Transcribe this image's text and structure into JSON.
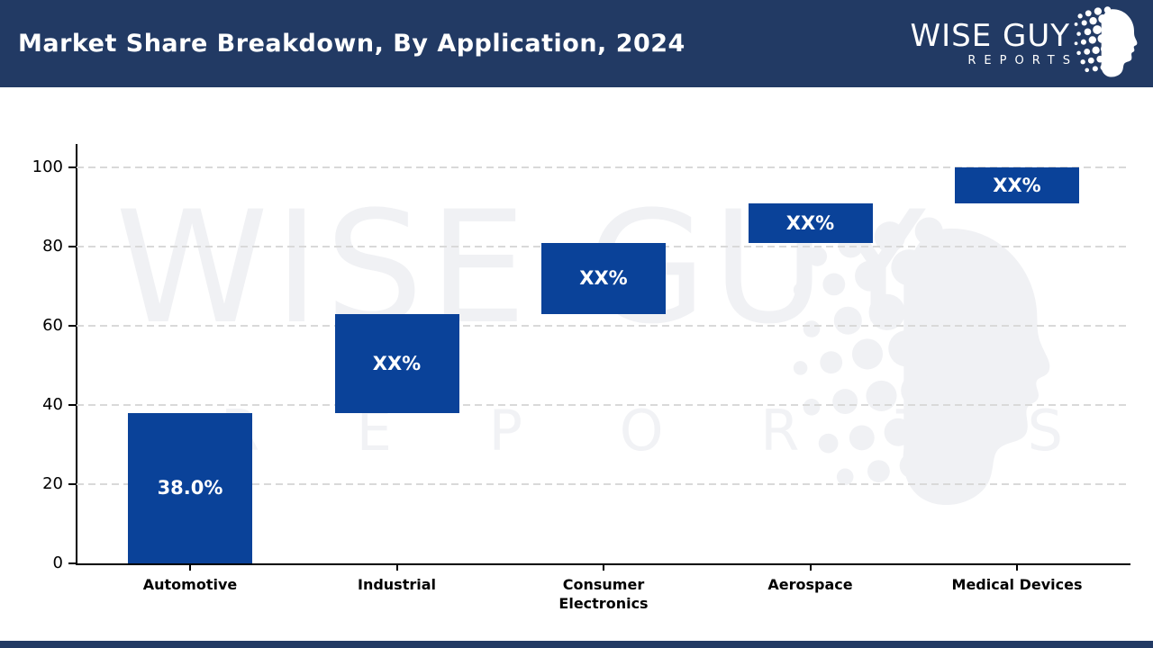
{
  "header": {
    "title": "Market Share Breakdown, By Application, 2024",
    "brand": {
      "name": "WISE GUY",
      "subtitle": "REPORTS"
    }
  },
  "watermark": {
    "line1": "WISE GUY",
    "line2": "R E P O R T S"
  },
  "chart_data": {
    "type": "bar",
    "subtype": "floating-waterfall",
    "title": "Market Share Breakdown, By Application, 2024",
    "xlabel": "",
    "ylabel": "",
    "ylim": [
      0,
      105
    ],
    "yticks": [
      0,
      20,
      40,
      60,
      80,
      100
    ],
    "grid": "horizontal-dashed",
    "legend": "none",
    "categories": [
      "Automotive",
      "Industrial",
      "Consumer Electronics",
      "Aerospace",
      "Medical Devices"
    ],
    "bars": [
      {
        "category": "Automotive",
        "start": 0,
        "end": 38,
        "label": "38.0%"
      },
      {
        "category": "Industrial",
        "start": 38,
        "end": 63,
        "label": "XX%"
      },
      {
        "category": "Consumer Electronics",
        "start": 63,
        "end": 81,
        "label": "XX%"
      },
      {
        "category": "Aerospace",
        "start": 81,
        "end": 91,
        "label": "XX%"
      },
      {
        "category": "Medical Devices",
        "start": 91,
        "end": 100,
        "label": "XX%"
      }
    ],
    "colors": {
      "bar": "#0a4299",
      "bar_label": "#ffffff",
      "axis": "#000000",
      "tick_label": "#000000",
      "gridline": "#d9d9d9",
      "header_bg": "#223a64",
      "footer_bg": "#223a64",
      "watermark": "#f0f1f4"
    }
  }
}
